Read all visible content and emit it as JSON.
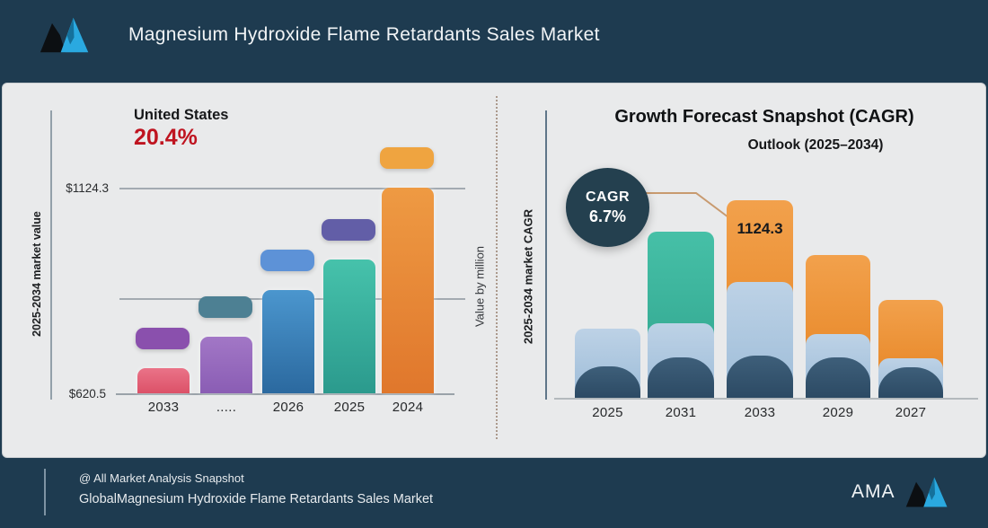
{
  "header": {
    "title": "Magnesium Hydroxide Flame Retardants Sales Market",
    "brand": "AMA"
  },
  "footer": {
    "line1": "@ All Market Analysis Snapshot",
    "line2": "GlobalMagnesium Hydroxide Flame Retardants Sales Market",
    "brand": "AMA"
  },
  "colors": {
    "background": "#1e3b50",
    "card": "#e9eaeb",
    "accent_red": "#bf1420",
    "logo_blue": "#2aa9e0"
  },
  "chart_data": [
    {
      "type": "bar",
      "title": "United States",
      "highlight": "20.4%",
      "ylabel": "2025-2034 market value",
      "ylabel_right": "Value by million",
      "yticks": [
        "$1124.3",
        "$620.5"
      ],
      "axis_min": 620.5,
      "grid_value": 1124.3,
      "grid": "on",
      "categories": [
        "2033",
        ".....",
        "2026",
        "2025",
        "2024"
      ],
      "values": [
        682,
        759,
        873,
        948,
        1124.3
      ],
      "bar_colors": [
        [
          "#ea7388",
          "#dc5168"
        ],
        [
          "#a277c6",
          "#8a5db4"
        ],
        [
          "#4b96ce",
          "#2b699f"
        ],
        [
          "#46c2ab",
          "#2b9a8d"
        ],
        [
          "#ee9a43",
          "#e0772c"
        ]
      ],
      "cap_colors": [
        "#8a50ad",
        "#4d8093",
        "#5d92d7",
        "#625ea7",
        "#efa440"
      ]
    },
    {
      "type": "stacked-bar",
      "title": "Growth Forecast Snapshot (CAGR)",
      "subtitle": "Outlook (2025–2034)",
      "ylabel": "2025-2034 market CAGR",
      "badge": {
        "label": "CAGR",
        "value": "6.7%"
      },
      "badge_color": "#24404f",
      "connector_color": "#c89a6f",
      "categories": [
        "2025",
        "2031",
        "2033",
        "2029",
        "2027"
      ],
      "bars": [
        {
          "category": "2025",
          "segments": [
            {
              "name": "base",
              "size": 35
            },
            {
              "name": "mid",
              "size": 42
            }
          ]
        },
        {
          "category": "2031",
          "segments": [
            {
              "name": "base",
              "size": 45
            },
            {
              "name": "mid",
              "size": 38
            },
            {
              "name": "teal",
              "size": 102
            }
          ]
        },
        {
          "category": "2033",
          "annotation": "1124.3",
          "segments": [
            {
              "name": "base",
              "size": 47
            },
            {
              "name": "mid",
              "size": 82
            },
            {
              "name": "orange",
              "size": 91
            }
          ]
        },
        {
          "category": "2029",
          "segments": [
            {
              "name": "base",
              "size": 45
            },
            {
              "name": "mid",
              "size": 26
            },
            {
              "name": "orange",
              "size": 88
            }
          ]
        },
        {
          "category": "2027",
          "segments": [
            {
              "name": "base",
              "size": 34
            },
            {
              "name": "mid",
              "size": 10
            },
            {
              "name": "orange",
              "size": 65
            }
          ]
        }
      ],
      "segment_colors": {
        "base": [
          "#3e5f7a",
          "#2c4a64"
        ],
        "mid": [
          "#bdd2e6",
          "#9dbcd8"
        ],
        "teal": [
          "#46c0a7",
          "#2fa28c"
        ],
        "orange": [
          "#f2a14c",
          "#e5811f"
        ]
      }
    }
  ]
}
